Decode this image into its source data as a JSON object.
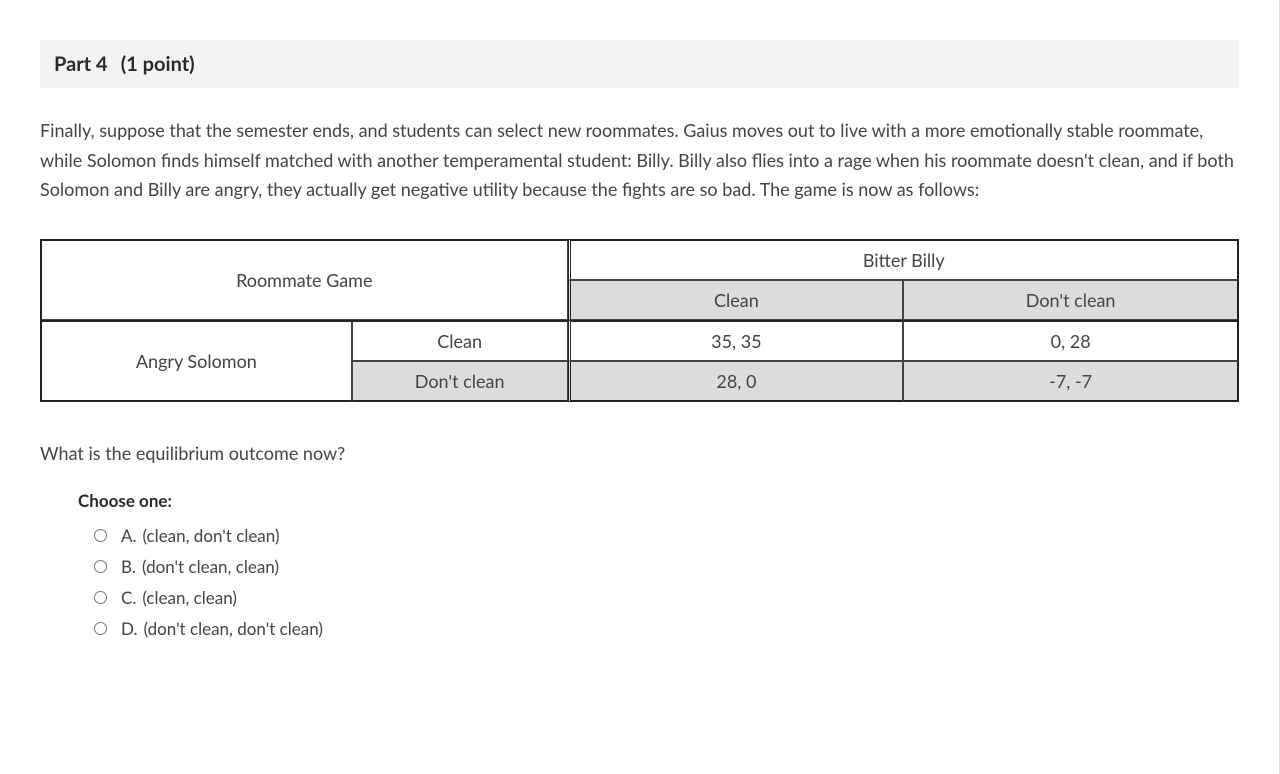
{
  "header": {
    "part_label": "Part 4",
    "points": "(1 point)"
  },
  "description": "Finally, suppose that the semester ends, and students can select new roommates. Gaius moves out to live with a more emotionally stable roommate, while Solomon finds himself matched with another temperamental student: Billy. Billy also flies into a rage when his roommate doesn't clean, and if both Solomon and Billy are angry, they actually get negative utility because the fights are so bad. The game is now as follows:",
  "table": {
    "title": "Roommate Game",
    "col_player": "Bitter Billy",
    "row_player": "Angry Solomon",
    "col_strat": [
      "Clean",
      "Don't clean"
    ],
    "row_strat": [
      "Clean",
      "Don't clean"
    ],
    "payoffs": {
      "r0c0": "35, 35",
      "r0c1": "0, 28",
      "r1c0": "28, 0",
      "r1c1": "-7, -7"
    }
  },
  "question": "What is the equilibrium outcome now?",
  "choose_label": "Choose one:",
  "options": [
    {
      "letter": "A.",
      "text": "(clean, don't clean)"
    },
    {
      "letter": "B.",
      "text": "(don't clean, clean)"
    },
    {
      "letter": "C.",
      "text": "(clean, clean)"
    },
    {
      "letter": "D.",
      "text": "(don't clean, don't clean)"
    }
  ]
}
